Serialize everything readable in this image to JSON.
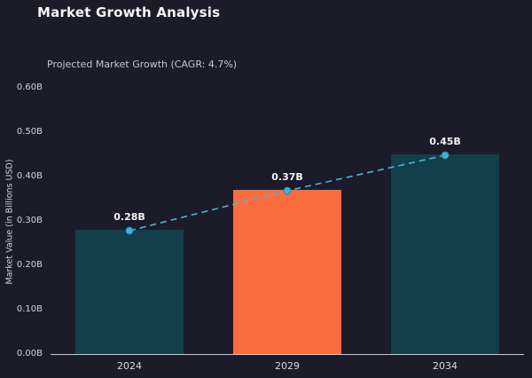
{
  "chart_data": {
    "type": "bar",
    "title": "Market Growth Analysis",
    "subtitle": "Projected Market Growth (CAGR: 4.7%)",
    "categories": [
      "2024",
      "2029",
      "2034"
    ],
    "values": [
      0.28,
      0.37,
      0.45
    ],
    "value_labels": [
      "0.28B",
      "0.37B",
      "0.45B"
    ],
    "series": [
      {
        "name": "market-value-bars",
        "type": "bar",
        "values": [
          0.28,
          0.37,
          0.45
        ]
      },
      {
        "name": "trend-dashed-line",
        "type": "line",
        "values": [
          0.28,
          0.37,
          0.45
        ]
      }
    ],
    "xlabel": "",
    "ylabel": "Market Value (in Billions USD)",
    "ylim": [
      0,
      0.6
    ],
    "yticks": [
      "0.00B",
      "0.10B",
      "0.20B",
      "0.30B",
      "0.40B",
      "0.50B",
      "0.60B"
    ],
    "grid": false,
    "legend": false,
    "colors": {
      "background": "#1c1b2a",
      "bar_colors": [
        "#123f4a",
        "#fc6d3d",
        "#123f4a"
      ],
      "trend_line": "#45b8d8",
      "marker_fill": "#3db4d8",
      "marker_edge": "#1e85a8",
      "axis_line": "#c9c9d4",
      "text": "#e8e8ef"
    }
  }
}
